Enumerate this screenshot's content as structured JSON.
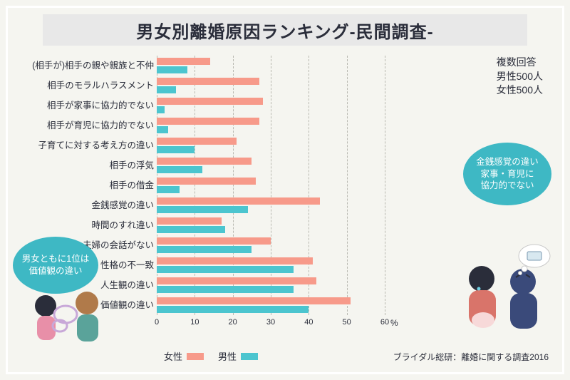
{
  "title": "男女別離婚原因ランキング-民間調査-",
  "note": {
    "l1": "複数回答",
    "l2": "男性500人",
    "l3": "女性500人"
  },
  "bubble_left": "男女ともに1位は\n価値観の違い",
  "bubble_right": "金銭感覚の違い\n家事・育児に\n協力的でない",
  "source": "ブライダル総研：離婚に関する調査2016",
  "legend": {
    "female": "女性",
    "male": "男性"
  },
  "pct_symbol": "%",
  "chart": {
    "type": "bar-grouped-horizontal",
    "xlim": [
      0,
      60
    ],
    "xtick_step": 10,
    "xticks": [
      0,
      10,
      20,
      30,
      40,
      50,
      60
    ],
    "grid_color": "#b8b8b0",
    "background_color": "#f5f5f0",
    "bar_colors": {
      "female": "#f79a8a",
      "male": "#4cc5cf"
    },
    "label_fontsize": 12.5,
    "tick_fontsize": 11,
    "categories": [
      {
        "label": "(相手が)相手の親や親族と不仲",
        "female": 14,
        "male": 8
      },
      {
        "label": "相手のモラルハラスメント",
        "female": 27,
        "male": 5
      },
      {
        "label": "相手が家事に協力的でない",
        "female": 28,
        "male": 2
      },
      {
        "label": "相手が育児に協力的でない",
        "female": 27,
        "male": 3
      },
      {
        "label": "子育てに対する考え方の違い",
        "female": 21,
        "male": 10
      },
      {
        "label": "相手の浮気",
        "female": 25,
        "male": 12
      },
      {
        "label": "相手の借金",
        "female": 26,
        "male": 6
      },
      {
        "label": "金銭感覚の違い",
        "female": 43,
        "male": 24
      },
      {
        "label": "時間のすれ違い",
        "female": 17,
        "male": 18
      },
      {
        "label": "夫婦の会話がない",
        "female": 30,
        "male": 25
      },
      {
        "label": "性格の不一致",
        "female": 41,
        "male": 36
      },
      {
        "label": "人生観の違い",
        "female": 42,
        "male": 36
      },
      {
        "label": "価値観の違い",
        "female": 51,
        "male": 40
      }
    ]
  }
}
